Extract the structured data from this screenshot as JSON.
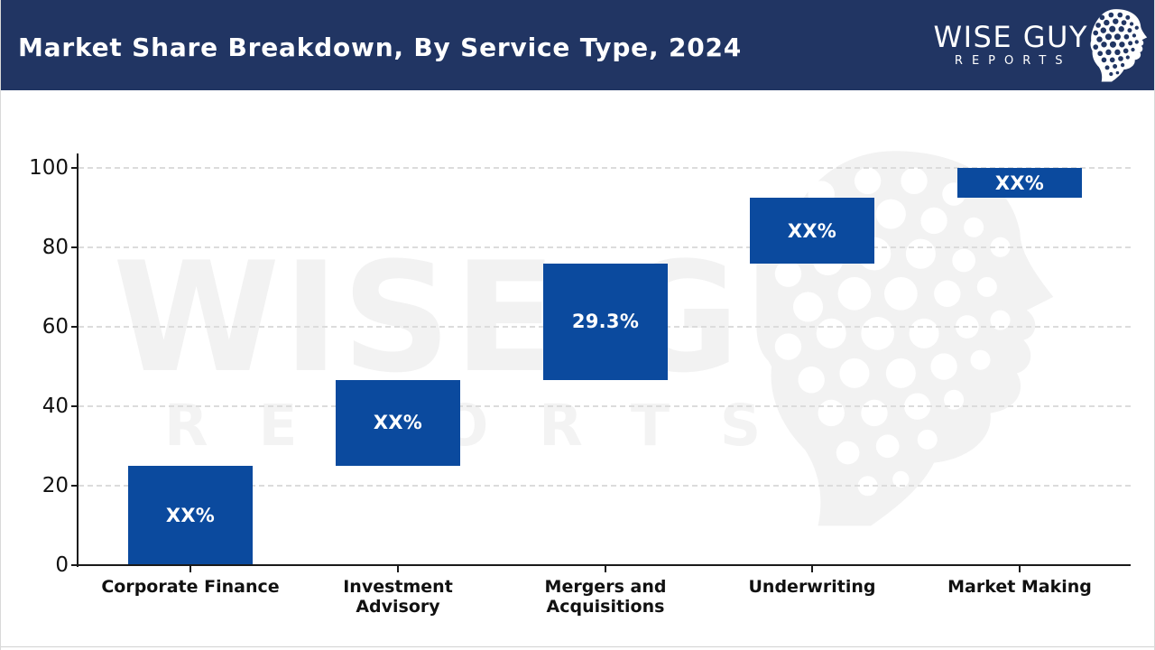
{
  "header": {
    "title": "Market Share Breakdown, By Service Type, 2024",
    "logo": {
      "brand_line1": "WISE GUY",
      "brand_line2": "REPORTS"
    }
  },
  "watermark": {
    "line1": "WISE GUY",
    "line2": "REPORTS"
  },
  "chart_data": {
    "type": "bar",
    "subtype": "floating-waterfall",
    "title": "Market Share Breakdown, By Service Type, 2024",
    "categories": [
      "Corporate Finance",
      "Investment\nAdvisory",
      "Mergers and\nAcquisitions",
      "Underwriting",
      "Market Making"
    ],
    "bars": [
      {
        "category": "Corporate Finance",
        "start": 0,
        "end": 25,
        "label": "XX%"
      },
      {
        "category": "Investment Advisory",
        "start": 25,
        "end": 46.6,
        "label": "XX%"
      },
      {
        "category": "Mergers and Acquisitions",
        "start": 46.6,
        "end": 75.9,
        "label": "29.3%"
      },
      {
        "category": "Underwriting",
        "start": 75.9,
        "end": 92.5,
        "label": "XX%"
      },
      {
        "category": "Market Making",
        "start": 92.5,
        "end": 100,
        "label": "XX%"
      }
    ],
    "yticks": [
      0,
      20,
      40,
      60,
      80,
      100
    ],
    "ylim": [
      0,
      104
    ],
    "xlabel": "",
    "ylabel": "",
    "grid": {
      "visible": true,
      "style": "dashed",
      "color": "#dcdcdc",
      "orientation": "horizontal"
    },
    "legend": null,
    "bar_color": "#0b4a9e",
    "bar_label_color": "#ffffff"
  },
  "colors": {
    "header_bg": "#213563",
    "bar": "#0b4a9e",
    "watermark": "#f2f2f2",
    "axis": "#1a1a1a"
  }
}
